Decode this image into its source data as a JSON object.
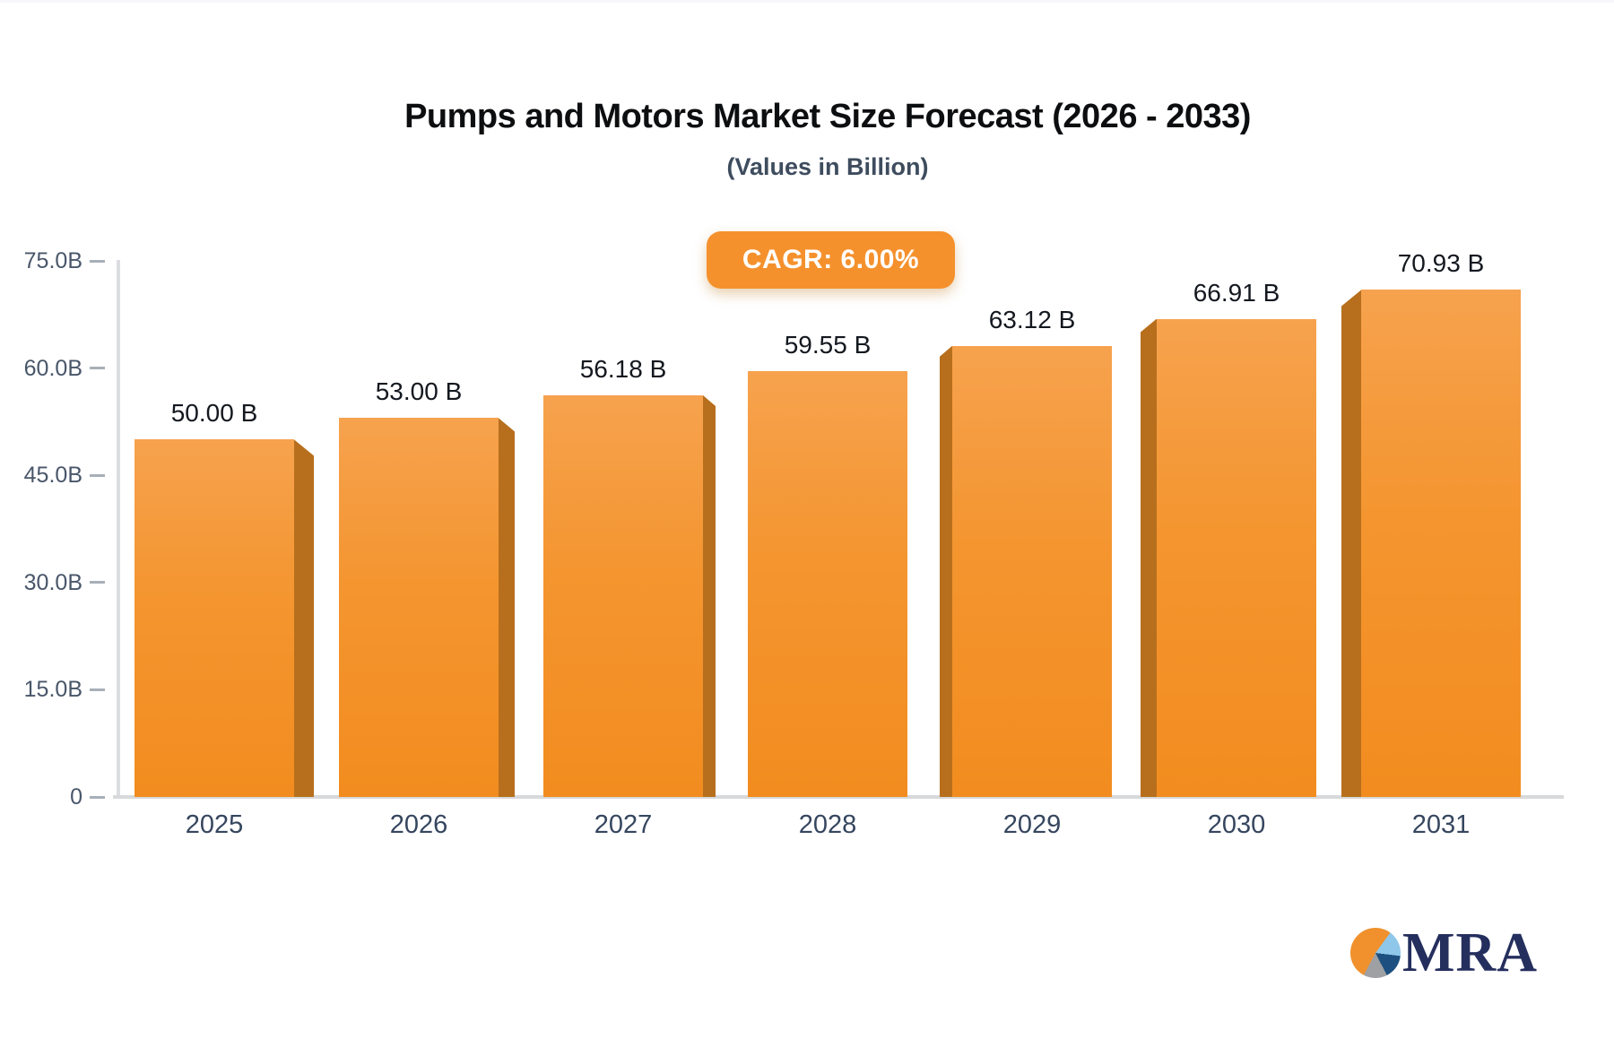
{
  "header": {
    "title": "Pumps and Motors Market Size Forecast (2026 - 2033)",
    "subtitle": "(Values in Billion)",
    "cagr_badge": "CAGR: 6.00%"
  },
  "colors": {
    "bar_orange": "#f4952f",
    "bar_side_dark": "#b76f1d",
    "badge_orange": "#f5912d",
    "axis_gray": "#d8d9db",
    "tick_text": "#49566a",
    "x_label_text": "#36465f",
    "logo_navy": "#252f5e",
    "logo_light_blue": "#8ec7e9",
    "logo_steel_blue": "#1d5080",
    "logo_gray": "#9ea0a3"
  },
  "chart_data": {
    "type": "bar",
    "title": "Pumps and Motors Market Size Forecast (2026 - 2033)",
    "subtitle": "(Values in Billion)",
    "annotation": "CAGR: 6.00%",
    "categories": [
      "2025",
      "2026",
      "2027",
      "2028",
      "2029",
      "2030",
      "2031"
    ],
    "values": [
      50.0,
      53.0,
      56.18,
      59.55,
      63.12,
      66.91,
      70.93
    ],
    "bar_labels": [
      "50.00 B",
      "53.00 B",
      "56.18 B",
      "59.55 B",
      "63.12 B",
      "66.91 B",
      "70.93 B"
    ],
    "y_tick_labels": [
      "75.0B",
      "60.0B",
      "45.0B",
      "30.0B",
      "15.0B",
      "0"
    ],
    "y_tick_values": [
      75,
      60,
      45,
      30,
      15,
      0
    ],
    "xlabel": "",
    "ylabel": "",
    "ylim": [
      0,
      75
    ],
    "grid": false,
    "legend": false,
    "style_3d": true
  },
  "logo": {
    "text": "MRA",
    "pie_icon": "pie-chart-icon"
  }
}
